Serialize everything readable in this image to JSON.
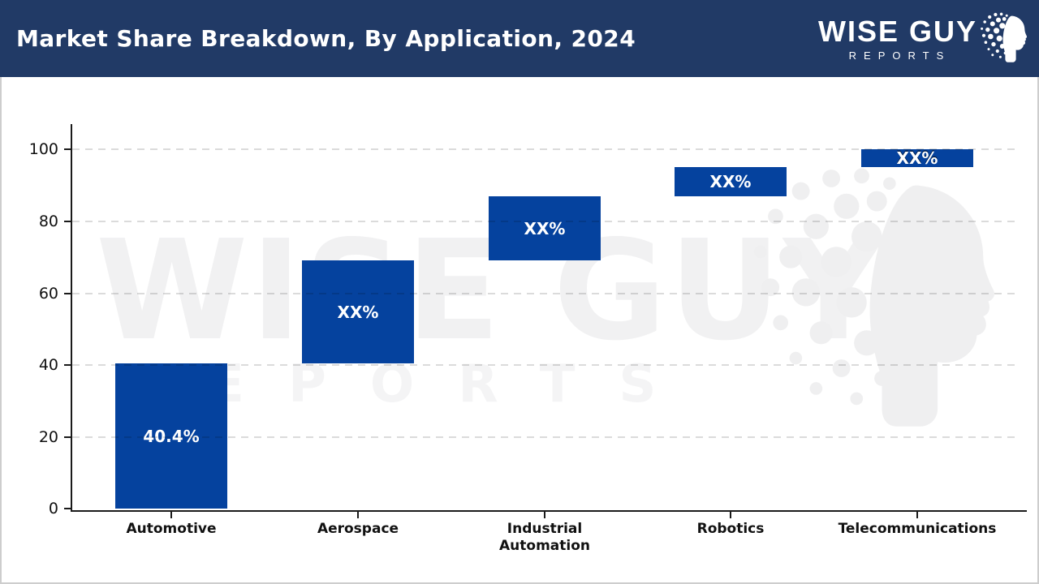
{
  "header": {
    "title": "Market Share Breakdown, By Application, 2024",
    "logo": {
      "line1": "WISE GUY",
      "line2": "REPORTS"
    }
  },
  "watermark": {
    "line1": "WISE GUY",
    "line2": "REPORTS"
  },
  "chart_data": {
    "type": "bar",
    "subtype": "waterfall-cumulative",
    "title": "Market Share Breakdown, By Application, 2024",
    "categories": [
      "Automotive",
      "Aerospace",
      "Industrial Automation",
      "Robotics",
      "Telecommunications"
    ],
    "x_tick_lines": [
      "Automotive",
      "Aerospace",
      "Industrial\nAutomation",
      "Robotics",
      "Telecommunications"
    ],
    "segments": [
      {
        "category": "Automotive",
        "start": 0,
        "end": 40.4,
        "value": 40.4,
        "label": "40.4%"
      },
      {
        "category": "Aerospace",
        "start": 40.4,
        "end": 69.2,
        "value": 28.8,
        "label": "XX%"
      },
      {
        "category": "Industrial Automation",
        "start": 69.2,
        "end": 86.9,
        "value": 17.7,
        "label": "XX%"
      },
      {
        "category": "Robotics",
        "start": 86.9,
        "end": 95.1,
        "value": 8.2,
        "label": "XX%"
      },
      {
        "category": "Telecommunications",
        "start": 95.1,
        "end": 100,
        "value": 4.9,
        "label": "XX%"
      }
    ],
    "ylim": [
      0,
      100
    ],
    "yticks": [
      0,
      20,
      40,
      60,
      80,
      100
    ],
    "xlabel": "",
    "ylabel": "",
    "grid": "horizontal-dashed",
    "legend": "none",
    "colors": {
      "bar": "#05429E",
      "bar_label": "#FFFFFF",
      "header_bg": "#213A66",
      "axis": "#1A1A1A",
      "tick_label": "#111111",
      "watermark": "#F1F1F2"
    }
  }
}
